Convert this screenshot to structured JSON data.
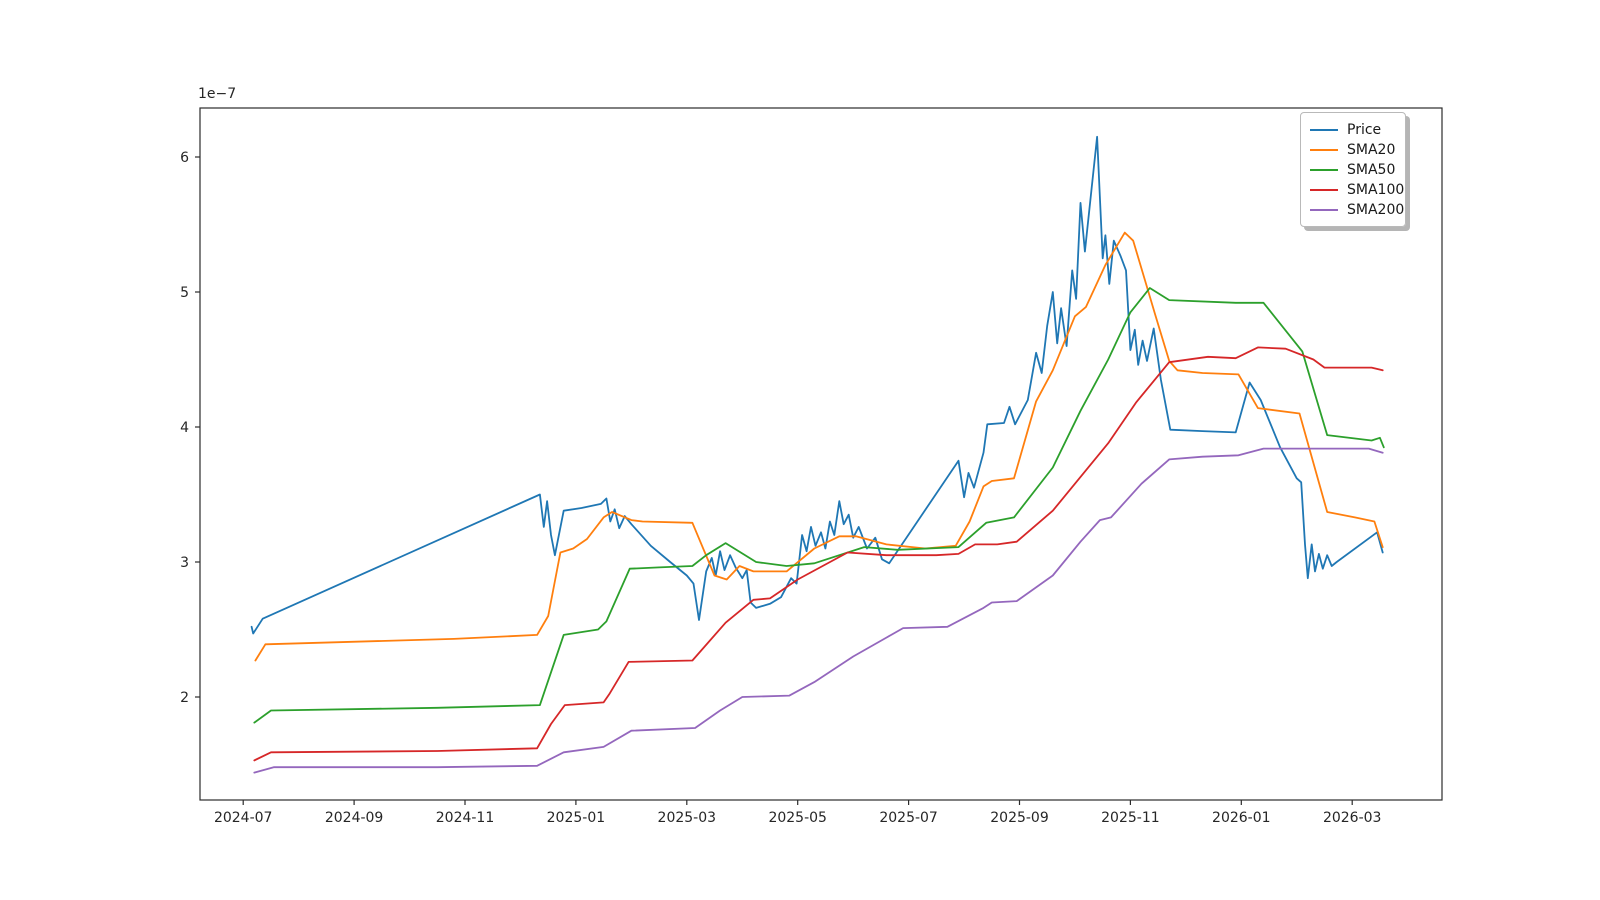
{
  "figure": {
    "offset_label": "1e−7"
  },
  "legend": {
    "entries": [
      {
        "label": "Price",
        "color": "#1f77b4"
      },
      {
        "label": "SMA20",
        "color": "#ff7f0e"
      },
      {
        "label": "SMA50",
        "color": "#2ca02c"
      },
      {
        "label": "SMA100",
        "color": "#d62728"
      },
      {
        "label": "SMA200",
        "color": "#9467bd"
      }
    ]
  },
  "chart_data": {
    "type": "line",
    "title": "",
    "xlabel": "",
    "ylabel": "",
    "y_scale_offset": "1e−7",
    "x_unit": "months since 2024-07-01",
    "xlim": [
      -0.78,
      21.62
    ],
    "ylim": [
      1.237,
      6.363
    ],
    "grid": false,
    "legend_position": "upper right",
    "x_ticks": [
      {
        "m": 0,
        "label": "2024-07"
      },
      {
        "m": 2,
        "label": "2024-09"
      },
      {
        "m": 4,
        "label": "2024-11"
      },
      {
        "m": 6,
        "label": "2025-01"
      },
      {
        "m": 8,
        "label": "2025-03"
      },
      {
        "m": 10,
        "label": "2025-05"
      },
      {
        "m": 12,
        "label": "2025-07"
      },
      {
        "m": 14,
        "label": "2025-09"
      },
      {
        "m": 16,
        "label": "2025-11"
      },
      {
        "m": 18,
        "label": "2026-01"
      },
      {
        "m": 20,
        "label": "2026-03"
      }
    ],
    "y_ticks": [
      2,
      3,
      4,
      5,
      6
    ],
    "series": [
      {
        "name": "Price",
        "color": "#1f77b4",
        "points": [
          [
            0.15,
            2.52
          ],
          [
            0.18,
            2.47
          ],
          [
            0.35,
            2.58
          ],
          [
            5.35,
            3.5
          ],
          [
            5.42,
            3.26
          ],
          [
            5.48,
            3.45
          ],
          [
            5.55,
            3.2
          ],
          [
            5.62,
            3.05
          ],
          [
            5.78,
            3.38
          ],
          [
            6.1,
            3.4
          ],
          [
            6.45,
            3.43
          ],
          [
            6.55,
            3.47
          ],
          [
            6.62,
            3.3
          ],
          [
            6.7,
            3.39
          ],
          [
            6.78,
            3.25
          ],
          [
            6.88,
            3.34
          ],
          [
            7.0,
            3.28
          ],
          [
            7.35,
            3.12
          ],
          [
            7.7,
            3.0
          ],
          [
            8.0,
            2.9
          ],
          [
            8.12,
            2.84
          ],
          [
            8.22,
            2.57
          ],
          [
            8.35,
            2.93
          ],
          [
            8.45,
            3.03
          ],
          [
            8.52,
            2.9
          ],
          [
            8.6,
            3.08
          ],
          [
            8.68,
            2.94
          ],
          [
            8.78,
            3.05
          ],
          [
            8.88,
            2.96
          ],
          [
            9.0,
            2.88
          ],
          [
            9.08,
            2.94
          ],
          [
            9.15,
            2.7
          ],
          [
            9.25,
            2.66
          ],
          [
            9.5,
            2.69
          ],
          [
            9.7,
            2.74
          ],
          [
            9.88,
            2.88
          ],
          [
            9.98,
            2.84
          ],
          [
            10.08,
            3.2
          ],
          [
            10.16,
            3.08
          ],
          [
            10.24,
            3.26
          ],
          [
            10.32,
            3.12
          ],
          [
            10.42,
            3.22
          ],
          [
            10.5,
            3.1
          ],
          [
            10.58,
            3.3
          ],
          [
            10.66,
            3.2
          ],
          [
            10.75,
            3.45
          ],
          [
            10.83,
            3.28
          ],
          [
            10.92,
            3.35
          ],
          [
            11.0,
            3.18
          ],
          [
            11.1,
            3.26
          ],
          [
            11.25,
            3.1
          ],
          [
            11.4,
            3.18
          ],
          [
            11.52,
            3.02
          ],
          [
            11.65,
            2.99
          ],
          [
            12.9,
            3.75
          ],
          [
            13.0,
            3.48
          ],
          [
            13.08,
            3.66
          ],
          [
            13.18,
            3.55
          ],
          [
            13.35,
            3.81
          ],
          [
            13.42,
            4.02
          ],
          [
            13.72,
            4.03
          ],
          [
            13.82,
            4.15
          ],
          [
            13.92,
            4.02
          ],
          [
            14.15,
            4.2
          ],
          [
            14.3,
            4.55
          ],
          [
            14.4,
            4.4
          ],
          [
            14.5,
            4.75
          ],
          [
            14.6,
            5.0
          ],
          [
            14.68,
            4.62
          ],
          [
            14.75,
            4.88
          ],
          [
            14.85,
            4.6
          ],
          [
            14.95,
            5.16
          ],
          [
            15.02,
            4.95
          ],
          [
            15.1,
            5.66
          ],
          [
            15.18,
            5.3
          ],
          [
            15.4,
            6.15
          ],
          [
            15.5,
            5.25
          ],
          [
            15.55,
            5.42
          ],
          [
            15.62,
            5.06
          ],
          [
            15.7,
            5.38
          ],
          [
            15.82,
            5.27
          ],
          [
            15.92,
            5.16
          ],
          [
            16.0,
            4.57
          ],
          [
            16.08,
            4.72
          ],
          [
            16.14,
            4.46
          ],
          [
            16.22,
            4.64
          ],
          [
            16.3,
            4.49
          ],
          [
            16.42,
            4.73
          ],
          [
            16.55,
            4.35
          ],
          [
            16.72,
            3.98
          ],
          [
            17.3,
            3.97
          ],
          [
            17.9,
            3.96
          ],
          [
            18.15,
            4.33
          ],
          [
            18.35,
            4.2
          ],
          [
            18.7,
            3.85
          ],
          [
            19.0,
            3.62
          ],
          [
            19.08,
            3.59
          ],
          [
            19.15,
            3.13
          ],
          [
            19.2,
            2.88
          ],
          [
            19.27,
            3.13
          ],
          [
            19.33,
            2.93
          ],
          [
            19.4,
            3.06
          ],
          [
            19.47,
            2.95
          ],
          [
            19.55,
            3.05
          ],
          [
            19.63,
            2.97
          ],
          [
            19.72,
            3.0
          ],
          [
            20.45,
            3.22
          ],
          [
            20.55,
            3.07
          ]
        ]
      },
      {
        "name": "SMA20",
        "color": "#ff7f0e",
        "points": [
          [
            0.22,
            2.27
          ],
          [
            0.4,
            2.39
          ],
          [
            3.8,
            2.43
          ],
          [
            5.3,
            2.46
          ],
          [
            5.5,
            2.6
          ],
          [
            5.72,
            3.07
          ],
          [
            5.95,
            3.1
          ],
          [
            6.2,
            3.17
          ],
          [
            6.5,
            3.33
          ],
          [
            6.65,
            3.37
          ],
          [
            7.0,
            3.31
          ],
          [
            7.2,
            3.3
          ],
          [
            8.1,
            3.29
          ],
          [
            8.5,
            2.9
          ],
          [
            8.72,
            2.87
          ],
          [
            8.95,
            2.97
          ],
          [
            9.2,
            2.93
          ],
          [
            9.8,
            2.93
          ],
          [
            10.3,
            3.1
          ],
          [
            10.75,
            3.19
          ],
          [
            11.05,
            3.19
          ],
          [
            11.6,
            3.13
          ],
          [
            12.3,
            3.1
          ],
          [
            12.85,
            3.12
          ],
          [
            13.1,
            3.3
          ],
          [
            13.35,
            3.56
          ],
          [
            13.5,
            3.6
          ],
          [
            13.9,
            3.62
          ],
          [
            14.3,
            4.19
          ],
          [
            14.6,
            4.42
          ],
          [
            15.0,
            4.82
          ],
          [
            15.2,
            4.89
          ],
          [
            15.55,
            5.2
          ],
          [
            15.9,
            5.44
          ],
          [
            16.05,
            5.38
          ],
          [
            16.45,
            4.83
          ],
          [
            16.7,
            4.49
          ],
          [
            16.85,
            4.42
          ],
          [
            17.3,
            4.4
          ],
          [
            17.95,
            4.39
          ],
          [
            18.3,
            4.14
          ],
          [
            19.05,
            4.1
          ],
          [
            19.55,
            3.37
          ],
          [
            20.05,
            3.33
          ],
          [
            20.4,
            3.3
          ],
          [
            20.55,
            3.11
          ]
        ]
      },
      {
        "name": "SMA50",
        "color": "#2ca02c",
        "points": [
          [
            0.2,
            1.81
          ],
          [
            0.5,
            1.9
          ],
          [
            3.5,
            1.92
          ],
          [
            5.35,
            1.94
          ],
          [
            5.78,
            2.46
          ],
          [
            6.4,
            2.5
          ],
          [
            6.55,
            2.56
          ],
          [
            6.97,
            2.95
          ],
          [
            7.5,
            2.96
          ],
          [
            8.1,
            2.97
          ],
          [
            8.35,
            3.05
          ],
          [
            8.7,
            3.14
          ],
          [
            9.25,
            3.0
          ],
          [
            9.8,
            2.97
          ],
          [
            10.3,
            2.99
          ],
          [
            11.2,
            3.11
          ],
          [
            11.8,
            3.09
          ],
          [
            12.9,
            3.11
          ],
          [
            13.4,
            3.29
          ],
          [
            13.9,
            3.33
          ],
          [
            14.6,
            3.7
          ],
          [
            15.1,
            4.12
          ],
          [
            15.6,
            4.5
          ],
          [
            16.0,
            4.85
          ],
          [
            16.35,
            5.03
          ],
          [
            16.7,
            4.94
          ],
          [
            17.9,
            4.92
          ],
          [
            18.4,
            4.92
          ],
          [
            19.1,
            4.56
          ],
          [
            19.55,
            3.94
          ],
          [
            20.35,
            3.9
          ],
          [
            20.5,
            3.92
          ],
          [
            20.57,
            3.85
          ]
        ]
      },
      {
        "name": "SMA100",
        "color": "#d62728",
        "points": [
          [
            0.2,
            1.53
          ],
          [
            0.5,
            1.59
          ],
          [
            3.5,
            1.6
          ],
          [
            5.3,
            1.62
          ],
          [
            5.55,
            1.8
          ],
          [
            5.8,
            1.94
          ],
          [
            6.5,
            1.96
          ],
          [
            6.6,
            2.02
          ],
          [
            6.95,
            2.26
          ],
          [
            8.1,
            2.27
          ],
          [
            8.7,
            2.55
          ],
          [
            9.2,
            2.72
          ],
          [
            9.5,
            2.73
          ],
          [
            10.0,
            2.87
          ],
          [
            10.9,
            3.07
          ],
          [
            11.6,
            3.05
          ],
          [
            12.5,
            3.05
          ],
          [
            12.9,
            3.06
          ],
          [
            13.2,
            3.13
          ],
          [
            13.6,
            3.13
          ],
          [
            13.95,
            3.15
          ],
          [
            14.6,
            3.38
          ],
          [
            15.1,
            3.63
          ],
          [
            15.6,
            3.88
          ],
          [
            16.1,
            4.18
          ],
          [
            16.7,
            4.48
          ],
          [
            17.4,
            4.52
          ],
          [
            17.9,
            4.51
          ],
          [
            18.3,
            4.59
          ],
          [
            18.8,
            4.58
          ],
          [
            19.3,
            4.5
          ],
          [
            19.5,
            4.44
          ],
          [
            20.35,
            4.44
          ],
          [
            20.55,
            4.42
          ]
        ]
      },
      {
        "name": "SMA200",
        "color": "#9467bd",
        "points": [
          [
            0.2,
            1.44
          ],
          [
            0.55,
            1.48
          ],
          [
            3.5,
            1.48
          ],
          [
            5.3,
            1.49
          ],
          [
            5.78,
            1.59
          ],
          [
            6.5,
            1.63
          ],
          [
            7.0,
            1.75
          ],
          [
            8.15,
            1.77
          ],
          [
            8.6,
            1.9
          ],
          [
            9.0,
            2.0
          ],
          [
            9.85,
            2.01
          ],
          [
            10.3,
            2.11
          ],
          [
            11.0,
            2.3
          ],
          [
            11.6,
            2.44
          ],
          [
            11.9,
            2.51
          ],
          [
            12.7,
            2.52
          ],
          [
            13.35,
            2.66
          ],
          [
            13.5,
            2.7
          ],
          [
            13.95,
            2.71
          ],
          [
            14.6,
            2.9
          ],
          [
            15.1,
            3.15
          ],
          [
            15.45,
            3.31
          ],
          [
            15.65,
            3.33
          ],
          [
            16.2,
            3.58
          ],
          [
            16.7,
            3.76
          ],
          [
            17.3,
            3.78
          ],
          [
            17.95,
            3.79
          ],
          [
            18.4,
            3.84
          ],
          [
            20.3,
            3.84
          ],
          [
            20.55,
            3.81
          ]
        ]
      }
    ]
  }
}
